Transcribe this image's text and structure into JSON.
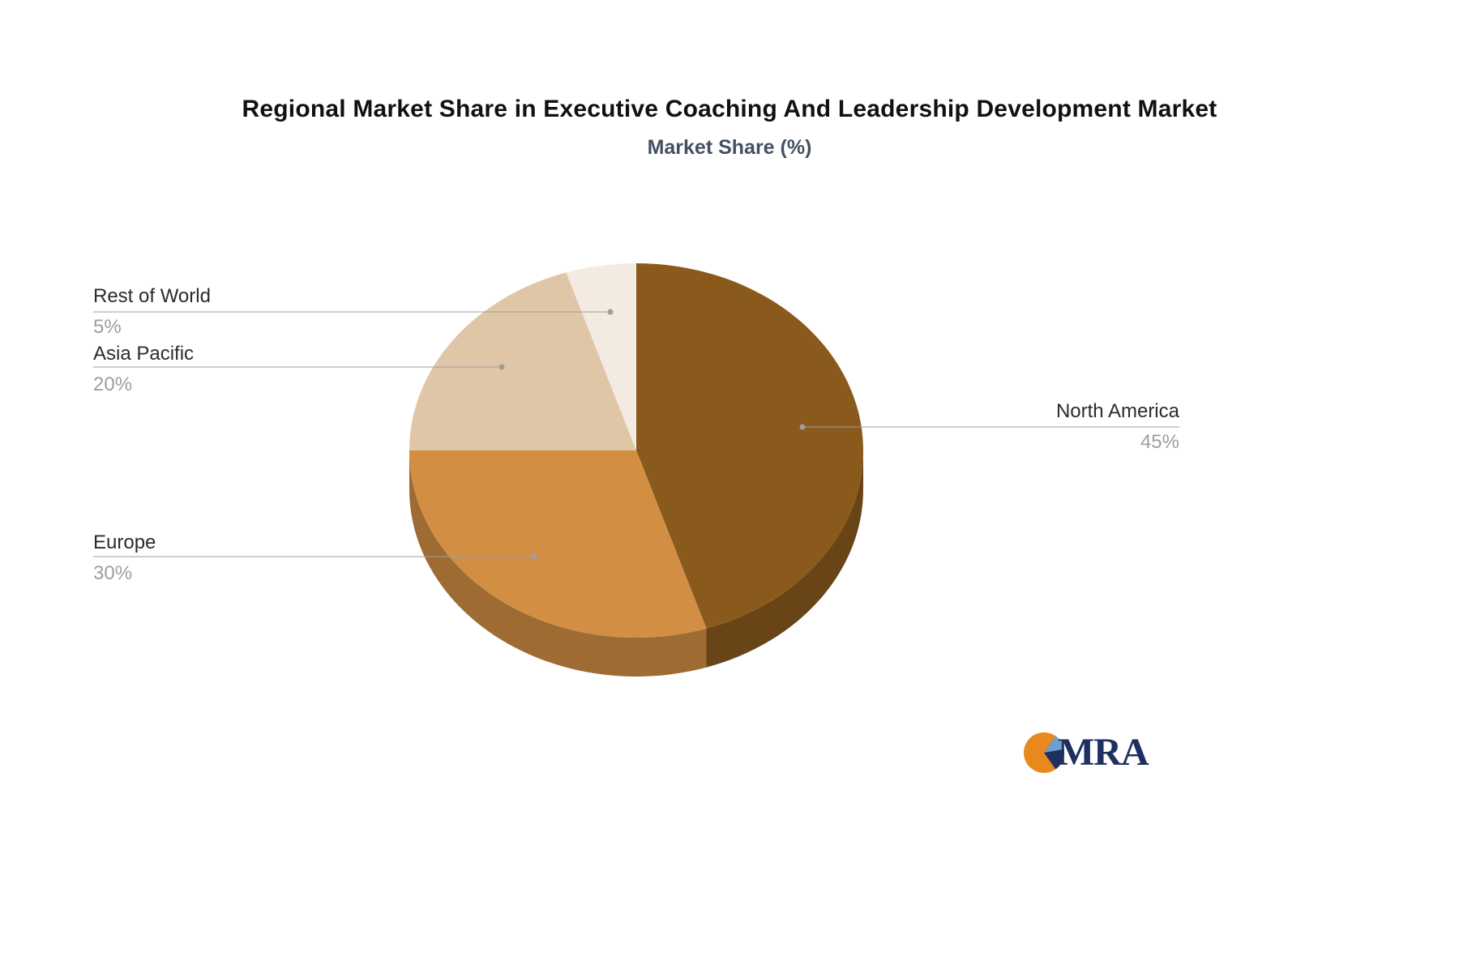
{
  "title": "Regional Market Share in Executive Coaching And Leadership Development Market",
  "subtitle": "Market Share (%)",
  "chart_data": {
    "type": "pie",
    "style": "3d",
    "legend_position": "none",
    "labels": [
      "North America",
      "Europe",
      "Asia Pacific",
      "Rest of World"
    ],
    "values": [
      45,
      30,
      20,
      5
    ],
    "value_labels": [
      "45%",
      "30%",
      "20%",
      "5%"
    ],
    "colors": [
      "#8A5A1D",
      "#D28F44",
      "#DFC6A6",
      "#F3EAE1"
    ],
    "label_name_color": "#2b2b2b",
    "label_value_color": "#9e9e9e",
    "leader_line_color": "#9e9e9e"
  },
  "logo": {
    "text": "MRA",
    "navy": "#1e3060",
    "orange": "#e8891e",
    "lightblue": "#6f9fce"
  }
}
